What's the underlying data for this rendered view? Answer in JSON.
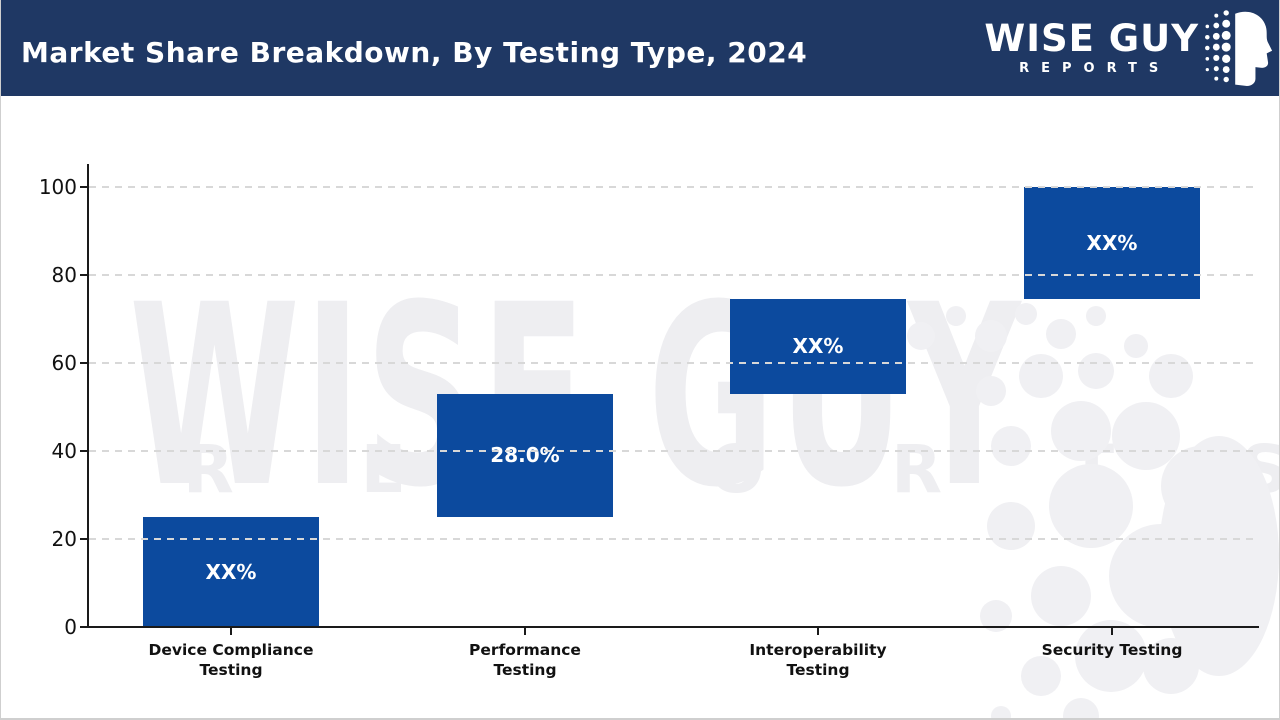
{
  "header": {
    "title": "Market Share Breakdown, By Testing Type, 2024",
    "bg_color": "#1f3864",
    "logo": {
      "line1": "WISE GUY",
      "line2": "REPORTS"
    }
  },
  "watermark": {
    "line1": "WISE GUY",
    "line2": "R E P O R T S",
    "color": "#eeeef1"
  },
  "chart_data": {
    "type": "bar",
    "subtype": "waterfall",
    "title": "Market Share Breakdown, By Testing Type, 2024",
    "categories": [
      "Device Compliance\nTesting",
      "Performance\nTesting",
      "Interoperability\nTesting",
      "Security Testing"
    ],
    "bars": [
      {
        "label": "XX%",
        "start": 0,
        "end": 25
      },
      {
        "label": "28.0%",
        "start": 25,
        "end": 53
      },
      {
        "label": "XX%",
        "start": 53,
        "end": 74.5
      },
      {
        "label": "XX%",
        "start": 74.5,
        "end": 100
      }
    ],
    "yticks": [
      0,
      20,
      40,
      60,
      80,
      100
    ],
    "ylim": [
      0,
      105
    ],
    "xlabel": "",
    "ylabel": "",
    "grid": "dashed-horizontal-above-bars",
    "bar_color": "#0c4a9e",
    "grid_color": "#d8d8d8",
    "legend": "none"
  }
}
